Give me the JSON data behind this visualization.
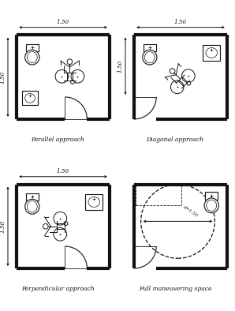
{
  "bg_color": "#ffffff",
  "line_color": "#111111",
  "wall_color": "#111111",
  "dim_color": "#111111",
  "text_color": "#111111",
  "label_font_size": 5.5,
  "dim_font_size": 5.2,
  "wall_lw": 3.0,
  "thin_lw": 0.8,
  "panels": [
    {
      "label": "Parallel approach",
      "door_side": "bottom_center_right"
    },
    {
      "label": "Diagonal approach",
      "door_side": "bottom_center_left"
    },
    {
      "label": "Perpendicular approach",
      "door_side": "bottom_center_right"
    },
    {
      "label": "Full maneuvering space",
      "door_side": "bottom_left"
    }
  ]
}
